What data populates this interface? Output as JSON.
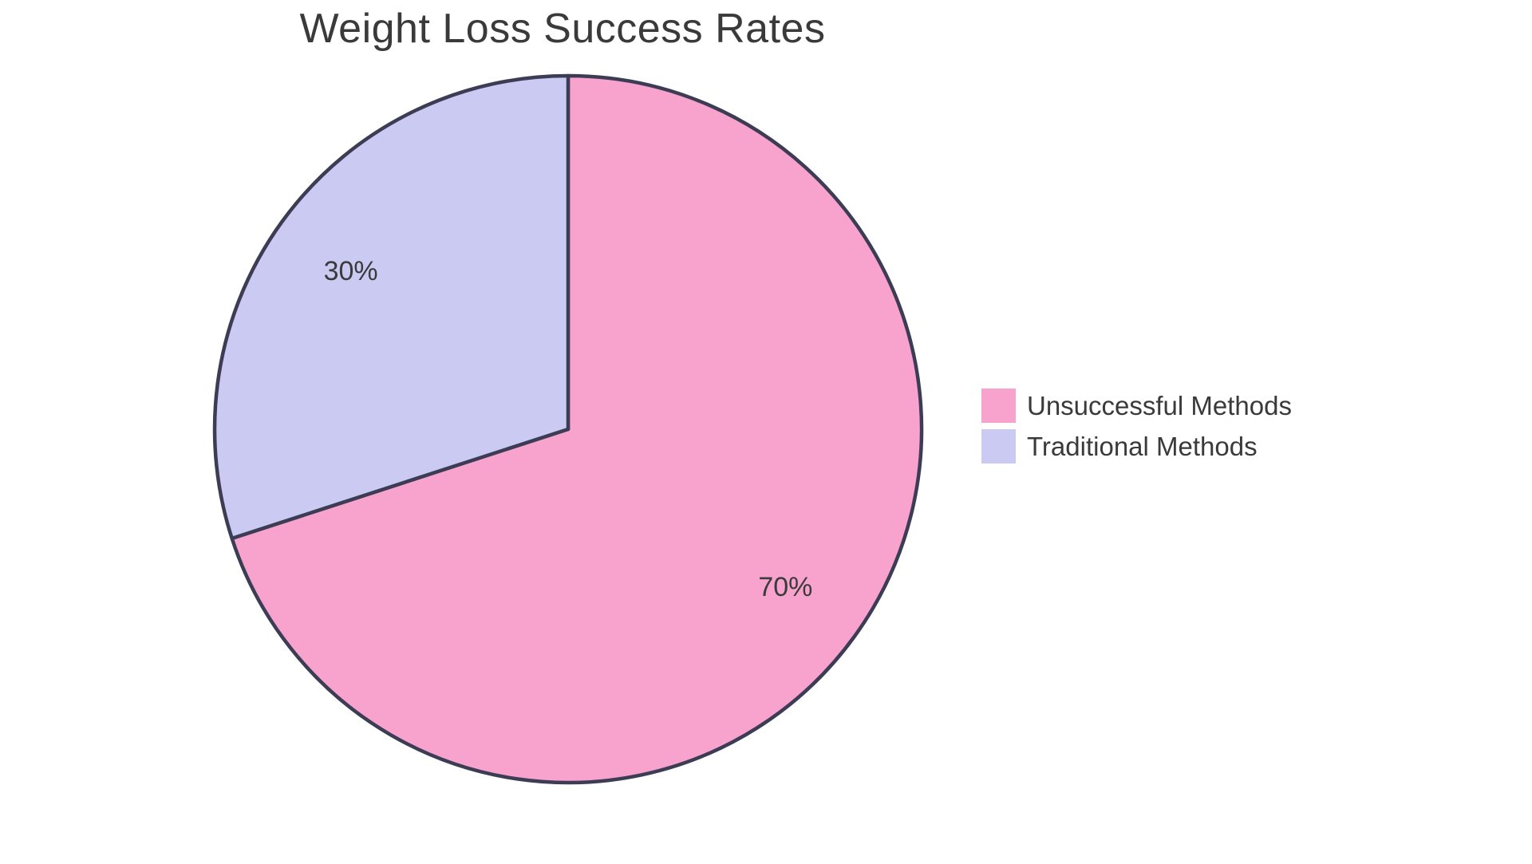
{
  "chart_data": {
    "type": "pie",
    "title": "Weight Loss Success Rates",
    "series": [
      {
        "name": "Unsuccessful Methods",
        "value": 70,
        "label": "70%",
        "color": "#F8A3CD"
      },
      {
        "name": "Traditional Methods",
        "value": 30,
        "label": "30%",
        "color": "#CACAF3"
      }
    ],
    "slice_border_color": "#3C3C55",
    "slice_label_color": "#3B3B3B",
    "title_color": "#3A3A3A",
    "legend_text_color": "#3A3A3A",
    "background_color": "#FFFFFF",
    "legend_position": "right",
    "start_angle_deg": 0,
    "direction": "clockwise"
  }
}
